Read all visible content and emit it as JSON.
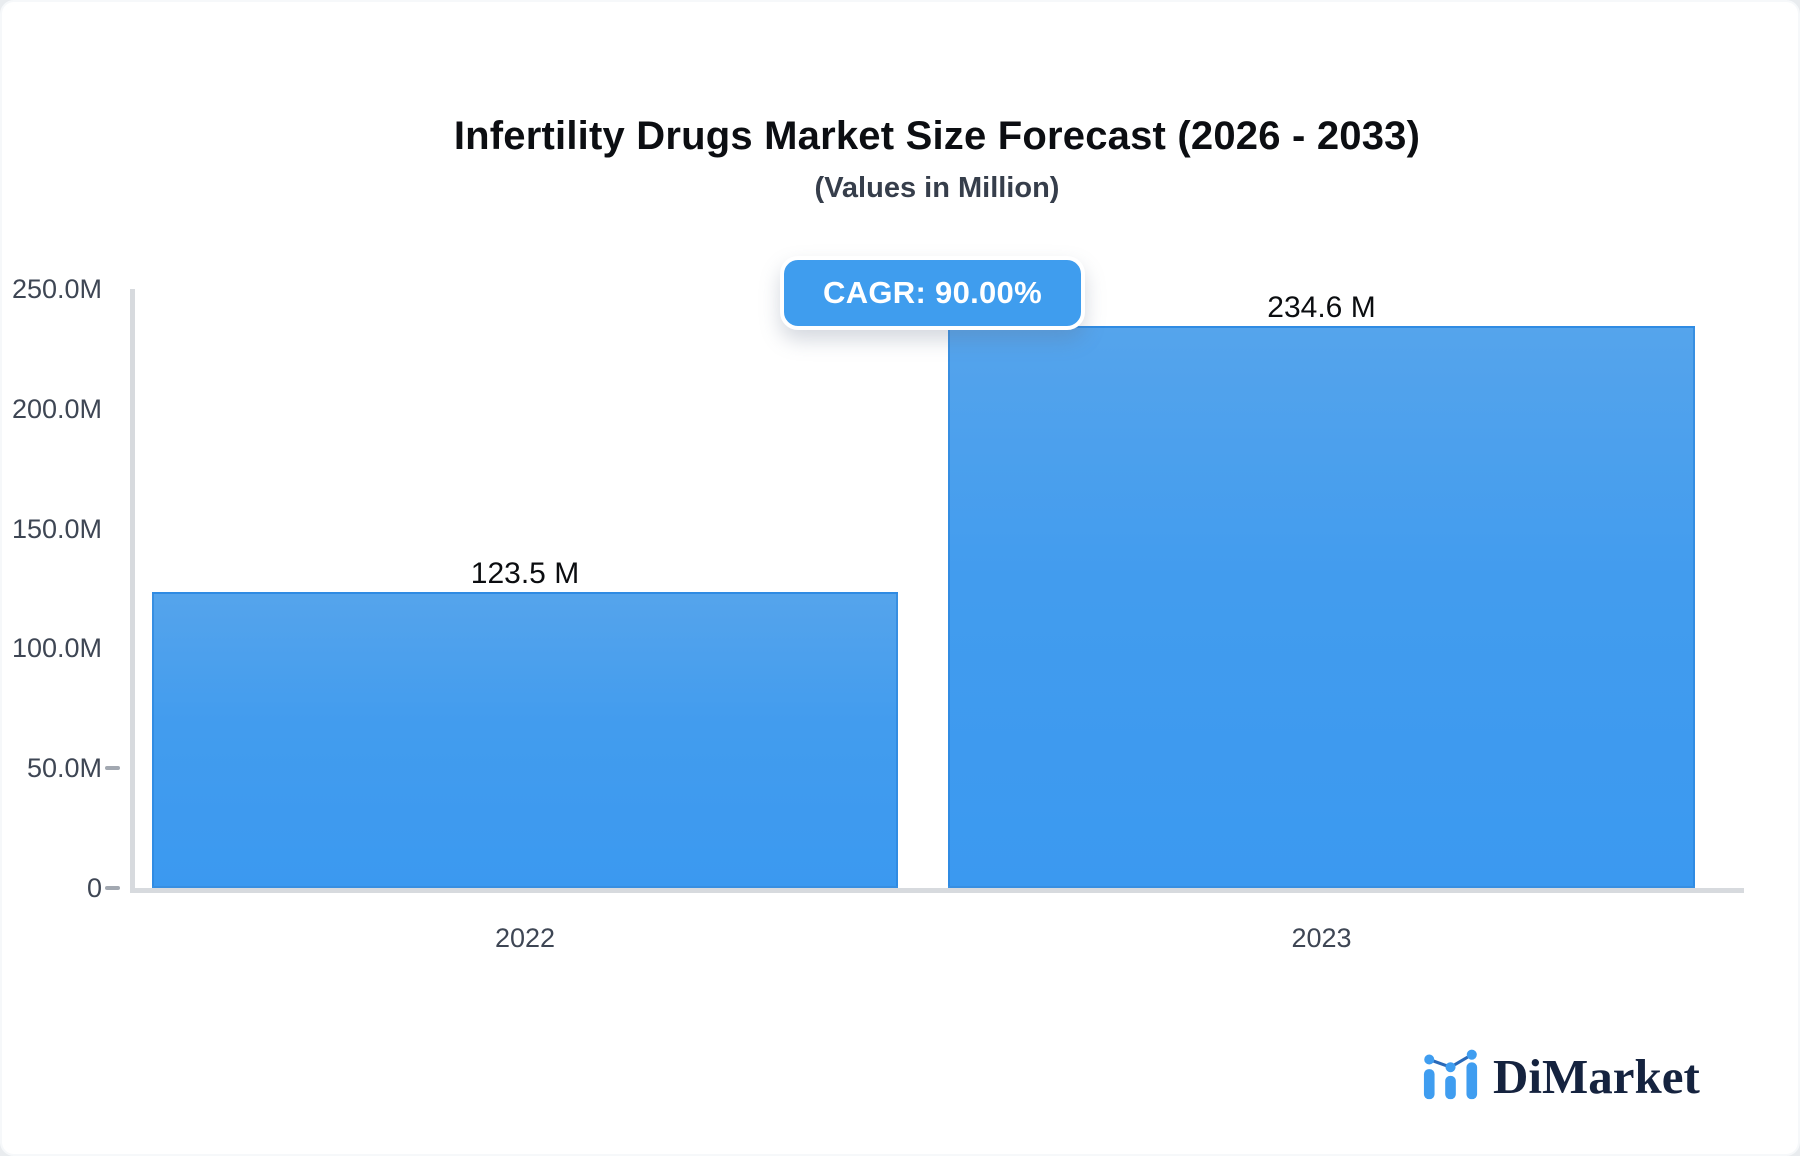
{
  "header": {
    "title": "Infertility Drugs Market Size Forecast (2026 - 2033)",
    "subtitle": "(Values in Million)"
  },
  "badge": {
    "label": "CAGR: 90.00%",
    "bg_color": "#3f9dee",
    "text_color": "#ffffff"
  },
  "chart_data": {
    "type": "bar",
    "title": "Infertility Drugs Market Size Forecast (2026 - 2033)",
    "subtitle": "(Values in Million)",
    "categories": [
      "2022",
      "2023"
    ],
    "values": [
      123.5,
      234.6
    ],
    "value_labels": [
      "123.5 M",
      "234.6 M"
    ],
    "xlabel": "",
    "ylabel": "",
    "ylim": [
      0,
      250
    ],
    "yticks": [
      {
        "value": 250,
        "label": "250.0M",
        "dash": false
      },
      {
        "value": 200,
        "label": "200.0M",
        "dash": false
      },
      {
        "value": 150,
        "label": "150.0M",
        "dash": false
      },
      {
        "value": 100,
        "label": "100.0M",
        "dash": false
      },
      {
        "value": 50,
        "label": "50.0M",
        "dash": true
      },
      {
        "value": 0,
        "label": "0",
        "dash": true
      }
    ],
    "grid": false,
    "legend": "none",
    "bar_color_top": "#55a4ec",
    "bar_color_bottom": "#3b99f0",
    "bar_border_color": "#2984dc"
  },
  "axis": {
    "line_color": "#d7dade",
    "tick_color": "#a2a8b1",
    "label_color": "#3e4654"
  },
  "logo": {
    "text": "DiMarket",
    "icon": "mini-bar-line-chart-icon",
    "text_color": "#15233f",
    "icon_bar_color": "#3f9df0",
    "icon_line_color": "#2a69b8"
  }
}
